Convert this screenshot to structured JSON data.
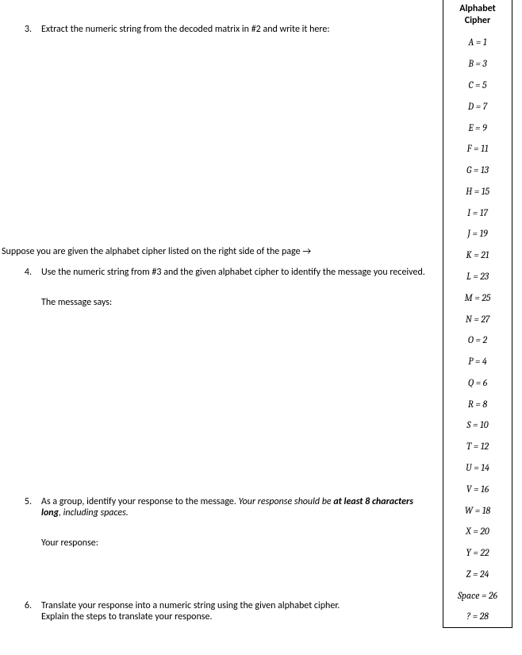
{
  "cipher": {
    "header_line1": "Alphabet",
    "header_line2": "Cipher",
    "rows": [
      "A = 1",
      "B = 3",
      "C = 5",
      "D = 7",
      "E = 9",
      "F = 11",
      "G = 13",
      "H = 15",
      "I = 17",
      "J = 19",
      "K = 21",
      "L = 23",
      "M = 25",
      "N = 27",
      "O = 2",
      "P = 4",
      "Q = 6",
      "R = 8",
      "S = 10",
      "T = 12",
      "U = 14",
      "V = 16",
      "W = 18",
      "X = 20",
      "Y = 22",
      "Z = 24",
      "Space = 26",
      "? = 28"
    ]
  },
  "q3": {
    "number": "3.",
    "text": "Extract the numeric string from the decoded matrix in #2 and write it here:"
  },
  "suppose_line": "Suppose you are given the alphabet cipher listed on the right side of the page →",
  "q4": {
    "number": "4.",
    "text": "Use the numeric string from #3 and the given alphabet cipher to identify the message you received.",
    "msg_label": "The message says:"
  },
  "q5": {
    "number": "5.",
    "prefix": "As a group, identify your response to the message.  ",
    "italic_before_bold": "Your response should be ",
    "bold": "at least 8 characters long",
    "italic_after_bold": ", including spaces.",
    "resp_label": "Your response:"
  },
  "q6": {
    "number": "6.",
    "line1": "Translate your response into a numeric string using the given alphabet cipher.",
    "line2": "Explain the steps to translate your response."
  }
}
